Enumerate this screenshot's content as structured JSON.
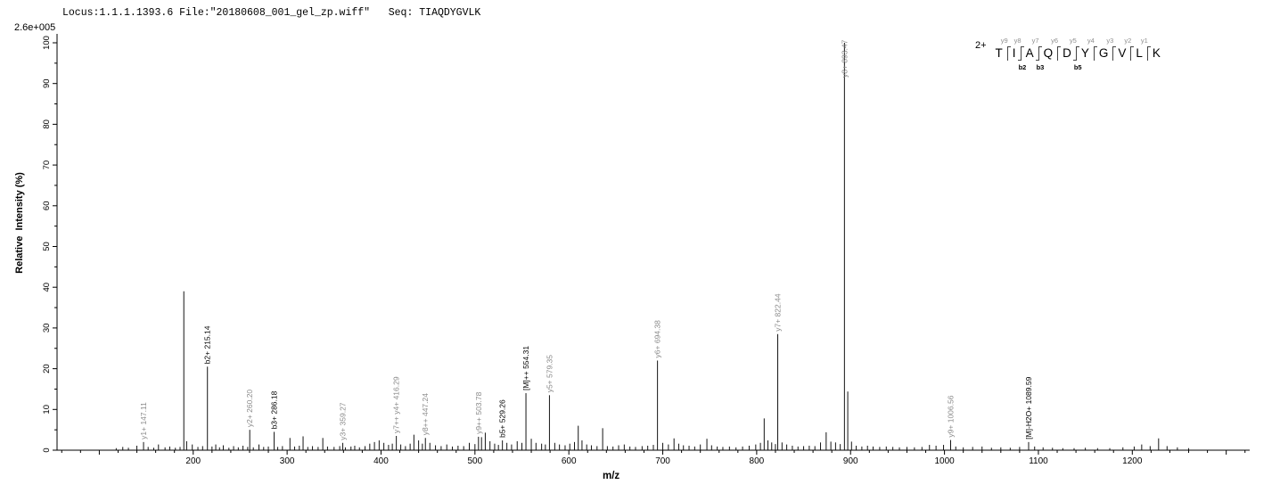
{
  "header": {
    "locus_line": "Locus:1.1.1.1393.6 File:\"20180608_001_gel_zp.wiff\"   Seq: TIAQDYGVLK"
  },
  "chart_data": {
    "type": "bar",
    "subtype": "mass-spectrum",
    "title": "Locus:1.1.1.1393.6 File:\"20180608_001_gel_zp.wiff\" Seq: TIAQDYGVLK",
    "xlabel": "m/z",
    "ylabel": "Relative  Intensity (%)",
    "y_scale_label": "2.6e+005",
    "xlim": [
      55,
      1325
    ],
    "ylim": [
      0,
      100
    ],
    "grid": false,
    "x_tick_labels": [
      200,
      300,
      400,
      500,
      600,
      700,
      800,
      900,
      1000,
      1100,
      1200
    ],
    "y_tick_labels": [
      0,
      10,
      20,
      30,
      40,
      50,
      60,
      70,
      80,
      90,
      100
    ],
    "precursor_charge": "2+",
    "sequence": [
      "T",
      "I",
      "A",
      "Q",
      "D",
      "Y",
      "G",
      "V",
      "L",
      "K"
    ],
    "y_ion_labels": [
      "y9",
      "y8",
      "y7",
      "y6",
      "y5",
      "y4",
      "y3",
      "y2",
      "y1"
    ],
    "b_ion_labels": [
      {
        "label": "b2",
        "gap": 1
      },
      {
        "label": "b3",
        "gap": 2
      },
      {
        "label": "b5",
        "gap": 4
      }
    ],
    "labeled_peaks": [
      {
        "mz": 147.11,
        "intensity": 2.0,
        "label": "y1+ 147.11",
        "color": "gray"
      },
      {
        "mz": 215.14,
        "intensity": 20.5,
        "label": "b2+ 215.14",
        "color": "black"
      },
      {
        "mz": 260.2,
        "intensity": 5.0,
        "label": "y2+ 260.20",
        "color": "gray"
      },
      {
        "mz": 286.18,
        "intensity": 4.5,
        "label": "b3+ 286.18",
        "color": "black"
      },
      {
        "mz": 359.27,
        "intensity": 1.8,
        "label": "y3+ 359.27",
        "color": "gray"
      },
      {
        "mz": 416.29,
        "intensity": 3.5,
        "label": "y7++ y4+ 416.29",
        "color": "gray"
      },
      {
        "mz": 447.24,
        "intensity": 3.0,
        "label": "y8++ 447.24",
        "color": "gray"
      },
      {
        "mz": 503.78,
        "intensity": 3.3,
        "label": "y9++ 503.78",
        "color": "gray"
      },
      {
        "mz": 529.26,
        "intensity": 2.4,
        "label": "b5+ 529.26",
        "color": "black"
      },
      {
        "mz": 554.31,
        "intensity": 14.0,
        "label": "[M]++ 554.31",
        "color": "black"
      },
      {
        "mz": 579.35,
        "intensity": 13.5,
        "label": "y5+ 579.35",
        "color": "gray"
      },
      {
        "mz": 694.38,
        "intensity": 22.0,
        "label": "y6+ 694.38",
        "color": "gray"
      },
      {
        "mz": 822.44,
        "intensity": 28.5,
        "label": "y7+ 822.44",
        "color": "gray"
      },
      {
        "mz": 893.47,
        "intensity": 100.0,
        "label": "y8+ 893.47",
        "color": "gray"
      },
      {
        "mz": 1006.56,
        "intensity": 2.5,
        "label": "y9+ 1006.56",
        "color": "gray"
      },
      {
        "mz": 1089.59,
        "intensity": 2.0,
        "label": "[M]-H2O+ 1089.59",
        "color": "black"
      }
    ],
    "unlabeled_peaks": [
      [
        118,
        0.5
      ],
      [
        125,
        0.8
      ],
      [
        131,
        0.6
      ],
      [
        140,
        1.1
      ],
      [
        152,
        0.8
      ],
      [
        158,
        0.6
      ],
      [
        163,
        1.4
      ],
      [
        170,
        0.7
      ],
      [
        175,
        0.9
      ],
      [
        181,
        0.6
      ],
      [
        186,
        0.8
      ],
      [
        190,
        39.0
      ],
      [
        193,
        2.2
      ],
      [
        199,
        1.4
      ],
      [
        205,
        0.8
      ],
      [
        210,
        1.0
      ],
      [
        220,
        0.9
      ],
      [
        224,
        1.4
      ],
      [
        228,
        0.7
      ],
      [
        232,
        1.2
      ],
      [
        238,
        0.6
      ],
      [
        243,
        1.0
      ],
      [
        248,
        0.7
      ],
      [
        253,
        1.1
      ],
      [
        258,
        0.8
      ],
      [
        264,
        0.7
      ],
      [
        270,
        1.4
      ],
      [
        275,
        0.8
      ],
      [
        280,
        0.9
      ],
      [
        290,
        0.8
      ],
      [
        295,
        1.0
      ],
      [
        303,
        3.0
      ],
      [
        308,
        0.9
      ],
      [
        313,
        1.1
      ],
      [
        317,
        3.4
      ],
      [
        322,
        0.8
      ],
      [
        327,
        1.0
      ],
      [
        333,
        0.8
      ],
      [
        338,
        3.0
      ],
      [
        343,
        0.9
      ],
      [
        350,
        0.8
      ],
      [
        356,
        1.0
      ],
      [
        362,
        0.7
      ],
      [
        368,
        0.9
      ],
      [
        372,
        1.1
      ],
      [
        377,
        0.7
      ],
      [
        383,
        1.0
      ],
      [
        388,
        1.6
      ],
      [
        393,
        2.0
      ],
      [
        398,
        2.4
      ],
      [
        403,
        1.8
      ],
      [
        408,
        1.3
      ],
      [
        412,
        1.6
      ],
      [
        421,
        1.4
      ],
      [
        426,
        1.0
      ],
      [
        431,
        1.6
      ],
      [
        435,
        3.8
      ],
      [
        440,
        2.4
      ],
      [
        444,
        1.6
      ],
      [
        452,
        1.8
      ],
      [
        458,
        1.2
      ],
      [
        464,
        1.0
      ],
      [
        470,
        1.4
      ],
      [
        476,
        0.9
      ],
      [
        482,
        1.1
      ],
      [
        488,
        1.0
      ],
      [
        494,
        1.8
      ],
      [
        500,
        1.5
      ],
      [
        507,
        3.2
      ],
      [
        511,
        4.3
      ],
      [
        516,
        2.2
      ],
      [
        521,
        1.6
      ],
      [
        525,
        1.3
      ],
      [
        534,
        1.8
      ],
      [
        539,
        1.4
      ],
      [
        545,
        2.2
      ],
      [
        550,
        1.8
      ],
      [
        560,
        2.8
      ],
      [
        565,
        1.8
      ],
      [
        571,
        1.6
      ],
      [
        575,
        1.4
      ],
      [
        585,
        1.8
      ],
      [
        590,
        1.4
      ],
      [
        596,
        1.2
      ],
      [
        601,
        1.6
      ],
      [
        606,
        2.0
      ],
      [
        610,
        6.0
      ],
      [
        614,
        2.4
      ],
      [
        619,
        1.4
      ],
      [
        624,
        1.2
      ],
      [
        630,
        1.0
      ],
      [
        636,
        5.4
      ],
      [
        641,
        1.0
      ],
      [
        647,
        0.9
      ],
      [
        653,
        1.2
      ],
      [
        659,
        1.4
      ],
      [
        665,
        0.9
      ],
      [
        671,
        0.8
      ],
      [
        678,
        1.0
      ],
      [
        684,
        1.1
      ],
      [
        690,
        1.3
      ],
      [
        700,
        1.8
      ],
      [
        706,
        1.4
      ],
      [
        712,
        2.9
      ],
      [
        717,
        1.6
      ],
      [
        722,
        1.2
      ],
      [
        728,
        1.1
      ],
      [
        734,
        0.9
      ],
      [
        740,
        1.4
      ],
      [
        747,
        2.8
      ],
      [
        752,
        1.2
      ],
      [
        758,
        0.9
      ],
      [
        764,
        0.8
      ],
      [
        771,
        0.9
      ],
      [
        778,
        0.7
      ],
      [
        785,
        0.9
      ],
      [
        792,
        1.1
      ],
      [
        799,
        1.4
      ],
      [
        804,
        1.8
      ],
      [
        808,
        7.8
      ],
      [
        812,
        2.4
      ],
      [
        816,
        1.9
      ],
      [
        820,
        1.5
      ],
      [
        827,
        1.9
      ],
      [
        832,
        1.4
      ],
      [
        838,
        1.1
      ],
      [
        844,
        0.9
      ],
      [
        850,
        1.0
      ],
      [
        856,
        1.1
      ],
      [
        862,
        1.0
      ],
      [
        868,
        1.9
      ],
      [
        874,
        4.4
      ],
      [
        879,
        2.1
      ],
      [
        884,
        1.9
      ],
      [
        889,
        1.5
      ],
      [
        897,
        14.4
      ],
      [
        901,
        2.1
      ],
      [
        906,
        1.1
      ],
      [
        912,
        0.9
      ],
      [
        918,
        1.1
      ],
      [
        924,
        0.9
      ],
      [
        931,
        0.8
      ],
      [
        938,
        0.9
      ],
      [
        945,
        0.8
      ],
      [
        952,
        0.7
      ],
      [
        960,
        0.8
      ],
      [
        968,
        0.7
      ],
      [
        976,
        0.8
      ],
      [
        984,
        1.3
      ],
      [
        991,
        1.1
      ],
      [
        999,
        1.3
      ],
      [
        1012,
        0.9
      ],
      [
        1020,
        0.7
      ],
      [
        1030,
        0.8
      ],
      [
        1040,
        0.9
      ],
      [
        1050,
        0.6
      ],
      [
        1060,
        0.7
      ],
      [
        1070,
        0.6
      ],
      [
        1080,
        0.8
      ],
      [
        1096,
        0.9
      ],
      [
        1105,
        0.7
      ],
      [
        1115,
        0.6
      ],
      [
        1126,
        0.5
      ],
      [
        1138,
        0.5
      ],
      [
        1150,
        0.6
      ],
      [
        1163,
        0.5
      ],
      [
        1176,
        0.5
      ],
      [
        1190,
        0.7
      ],
      [
        1202,
        0.9
      ],
      [
        1210,
        1.4
      ],
      [
        1219,
        1.0
      ],
      [
        1228,
        2.9
      ],
      [
        1237,
        1.0
      ],
      [
        1248,
        0.7
      ],
      [
        1260,
        0.5
      ]
    ]
  }
}
